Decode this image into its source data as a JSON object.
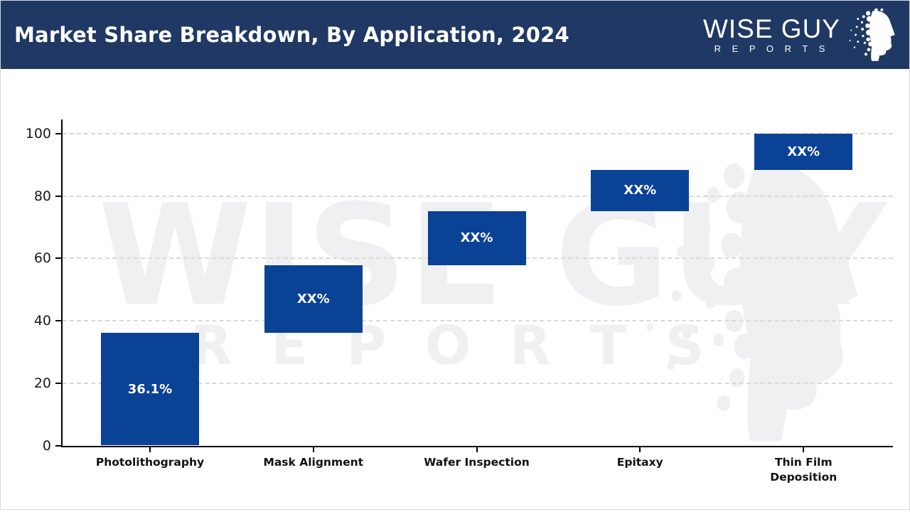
{
  "header": {
    "title": "Market Share Breakdown, By Application, 2024",
    "bg_color": "#1f3864",
    "logo": {
      "line1": "WISE GUY",
      "line2": "R E P O R T S"
    }
  },
  "watermark": {
    "line1": "WISE GUY",
    "line2": "R E P O R T S"
  },
  "chart_data": {
    "type": "bar",
    "subtype": "waterfall",
    "title": "Market Share Breakdown, By Application, 2024",
    "categories": [
      "Photolithography",
      "Mask Alignment",
      "Wafer Inspection",
      "Epitaxy",
      "Thin Film\nDeposition"
    ],
    "segments": [
      {
        "category": "Photolithography",
        "start": 0,
        "end": 36.1,
        "label": "36.1%"
      },
      {
        "category": "Mask Alignment",
        "start": 36.1,
        "end": 57.9,
        "label": "XX%"
      },
      {
        "category": "Wafer Inspection",
        "start": 57.9,
        "end": 75.2,
        "label": "XX%"
      },
      {
        "category": "Epitaxy",
        "start": 75.2,
        "end": 88.4,
        "label": "XX%"
      },
      {
        "category": "Thin Film\nDeposition",
        "start": 88.4,
        "end": 100,
        "label": "XX%"
      }
    ],
    "ylim": [
      0,
      100
    ],
    "yticks": [
      0,
      20,
      40,
      60,
      80,
      100
    ],
    "grid": "horizontal-dashed",
    "legend": "none",
    "xlabel": "",
    "ylabel": "",
    "bar_color": "#0a4296",
    "bar_label_color": "#ffffff",
    "axis_color": "#000000",
    "grid_color": "#d9d9d9",
    "watermark_color": "#f0f0f2"
  }
}
